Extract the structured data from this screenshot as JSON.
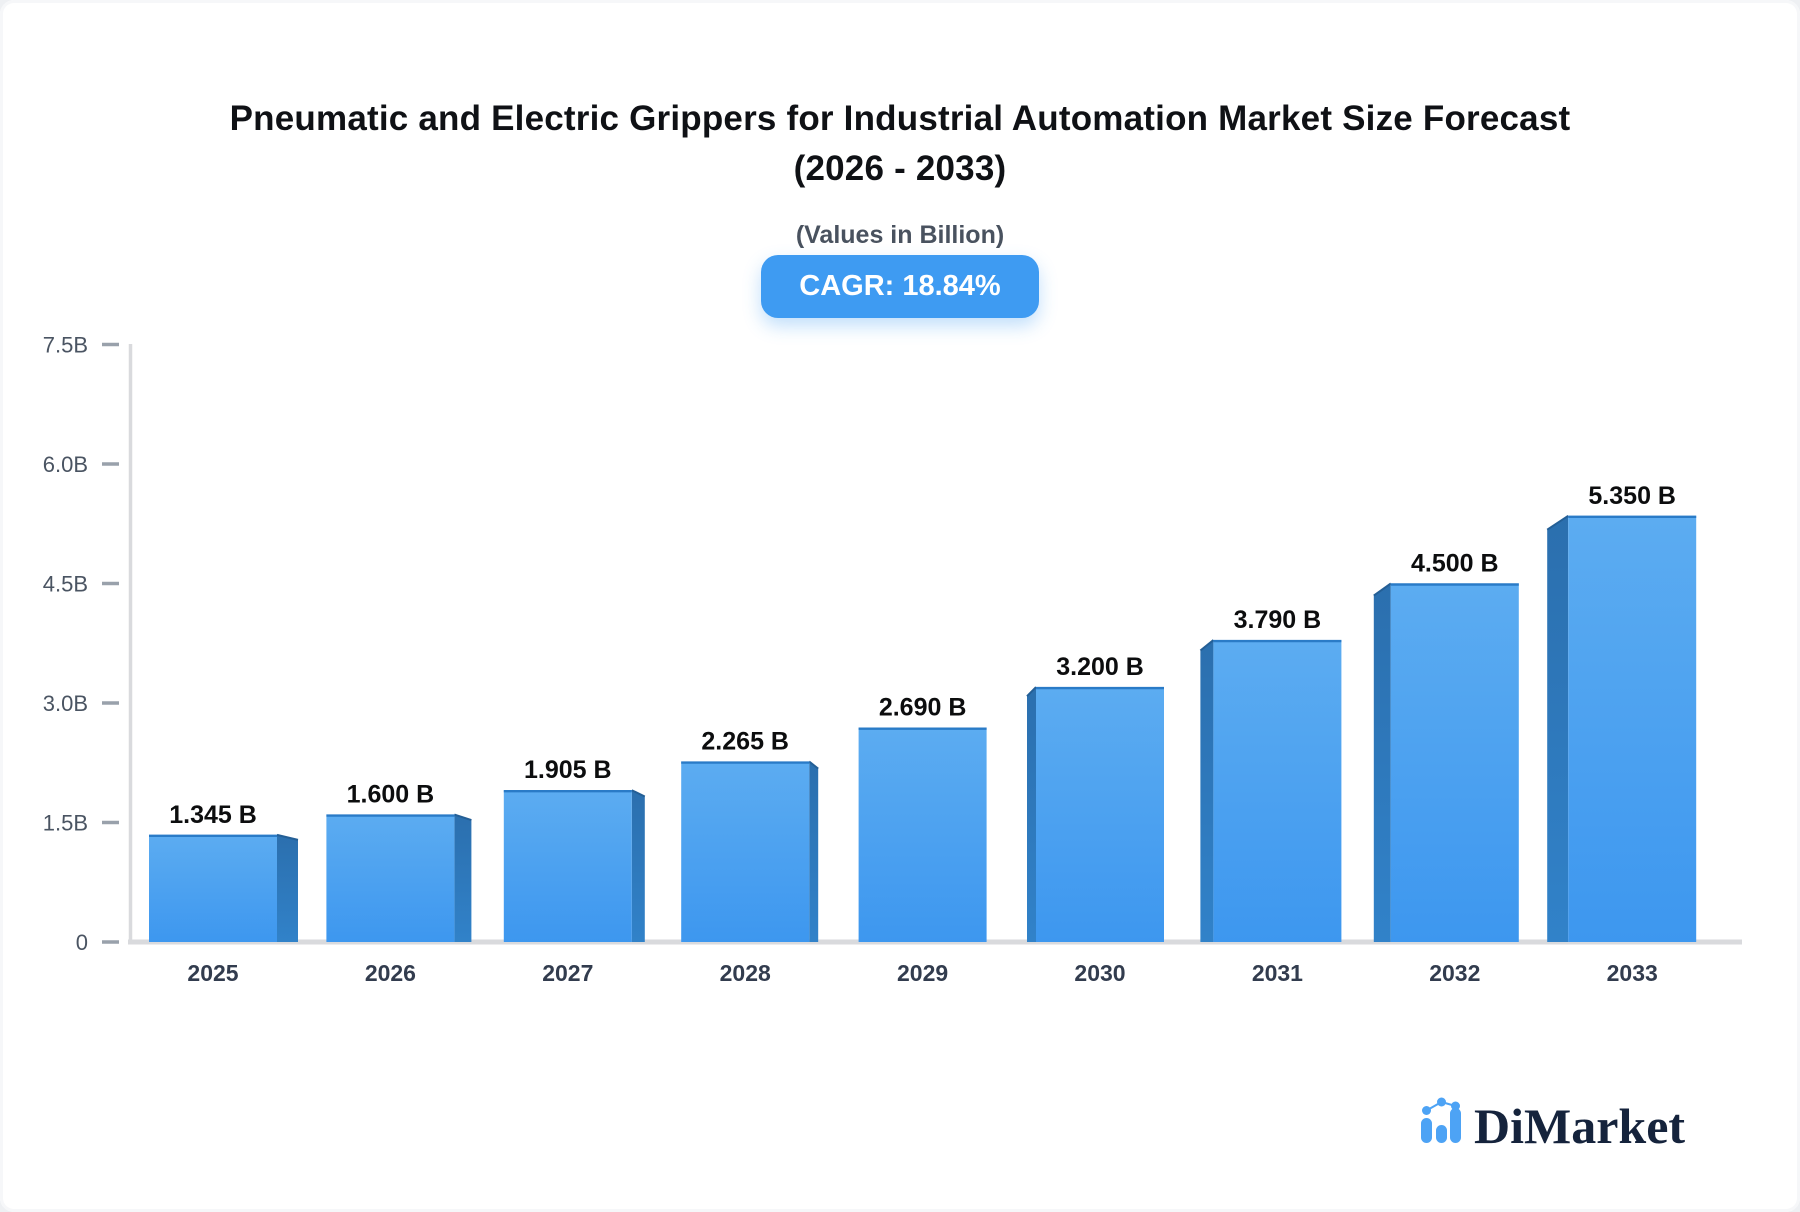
{
  "header": {
    "title_line1": "Pneumatic and Electric Grippers for Industrial Automation Market Size Forecast",
    "title_line2": "(2026 - 2033)",
    "subtitle": "(Values in Billion)",
    "badge_label": "CAGR: 18.84%"
  },
  "chart_data": {
    "type": "bar",
    "title": "Pneumatic and Electric Grippers for Industrial Automation Market Size Forecast (2026 - 2033)",
    "subtitle": "(Values in Billion)",
    "cagr_percent": 18.84,
    "unit": "Billion",
    "categories": [
      "2025",
      "2026",
      "2027",
      "2028",
      "2029",
      "2030",
      "2031",
      "2032",
      "2033"
    ],
    "values": [
      1.345,
      1.6,
      1.905,
      2.265,
      2.69,
      3.2,
      3.79,
      4.5,
      5.35
    ],
    "value_labels": [
      "1.345 B",
      "1.600 B",
      "1.905 B",
      "2.265 B",
      "2.690 B",
      "3.200 B",
      "3.790 B",
      "4.500 B",
      "5.350 B"
    ],
    "xlabel": "",
    "ylabel": "",
    "ylim": [
      0,
      7.5
    ],
    "yticks": {
      "values": [
        0,
        1.5,
        3.0,
        4.5,
        6.0,
        7.5
      ],
      "labels": [
        "0",
        "1.5B",
        "3.0B",
        "4.5B",
        "6.0B",
        "7.5B"
      ]
    },
    "grid": false,
    "legend": "none",
    "bar_style": "3d-extruded"
  },
  "colors": {
    "accent": "#3E9BF2",
    "bar_face_top": "#5CACF1",
    "bar_face_bottom": "#3D97EF",
    "bar_face_edge": "#2A7BC7",
    "bar_side_top": "#2B6FAE",
    "bar_side_bottom": "#3182C9",
    "bar_side_edge": "#245F96",
    "axis_line": "#D9DADD",
    "tick_mark": "#99A1AB",
    "ytick_text": "#4A5462",
    "xtick_text": "#323C4E",
    "value_text": "#0C0D0E",
    "title_text": "#0F1115",
    "subtitle_text": "#49525F",
    "logo_icon": "#4DA3F5",
    "logo_text": "#15233C"
  },
  "logo": {
    "text": "DiMarket",
    "icon": "mini-bar-line-chart-icon"
  }
}
